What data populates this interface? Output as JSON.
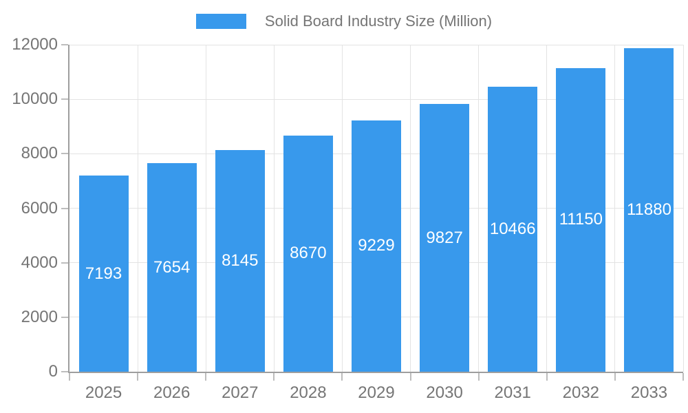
{
  "chart_data": {
    "type": "bar",
    "title": "Solid Board Industry Size (Million)",
    "legend_entries": [
      "Solid Board Industry Size (Million)"
    ],
    "legend_position": "top-center",
    "categories": [
      "2025",
      "2026",
      "2027",
      "2028",
      "2029",
      "2030",
      "2031",
      "2032",
      "2033"
    ],
    "series": [
      {
        "name": "Solid Board Industry Size (Million)",
        "values": [
          7193,
          7654,
          8145,
          8670,
          9229,
          9827,
          10466,
          11150,
          11880
        ]
      }
    ],
    "xlabel": "",
    "ylabel": "",
    "ylim": [
      0,
      12000
    ],
    "y_ticks": [
      0,
      2000,
      4000,
      6000,
      8000,
      10000,
      12000
    ],
    "grid": true,
    "bar_value_labels_inside": true,
    "colors": {
      "bar": "#3899EC",
      "grid": "#E3E3E3",
      "axis": "#9E9E9E",
      "tick": "#BDBDBD",
      "text": "#757575",
      "bar_label": "#FFFFFF",
      "background": "#FFFFFF"
    }
  }
}
